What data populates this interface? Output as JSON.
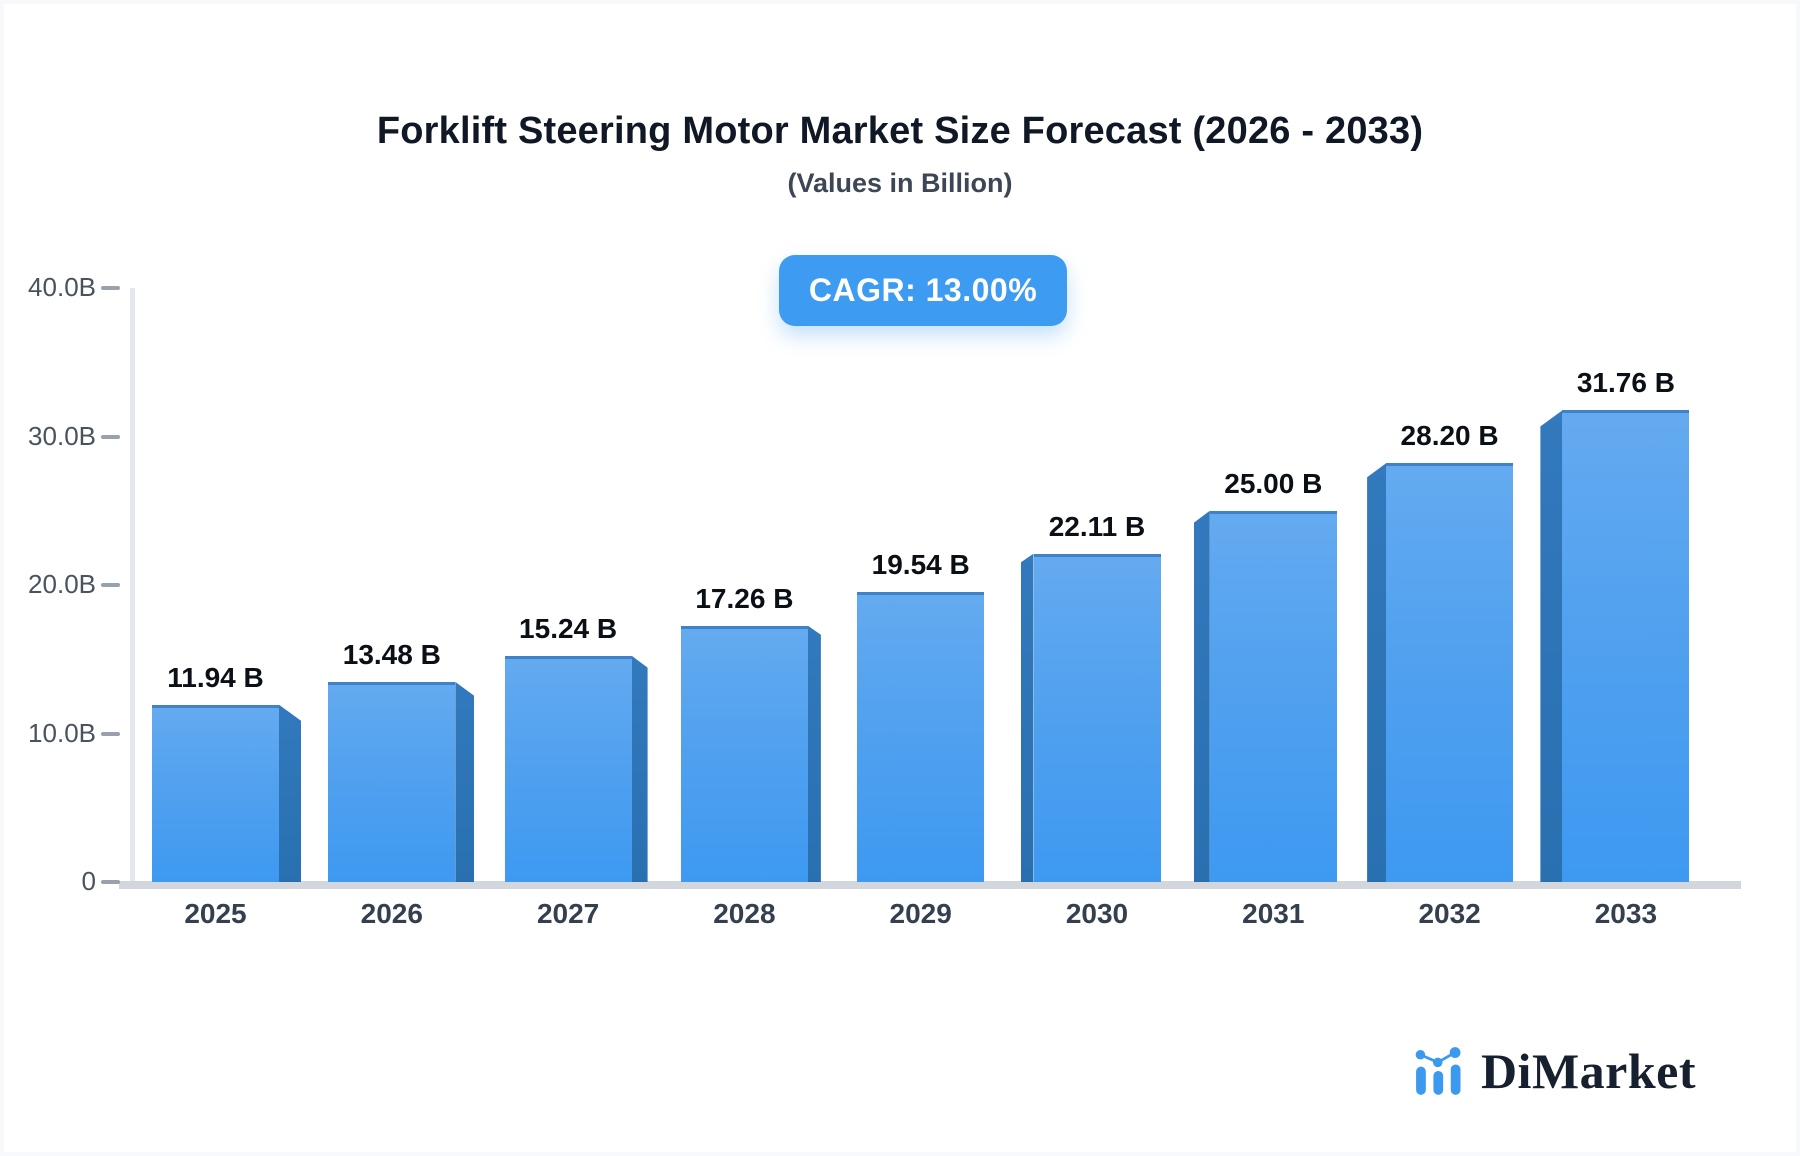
{
  "header": {
    "title": "Forklift Steering Motor Market Size Forecast (2026 - 2033)",
    "subtitle": "(Values in Billion)"
  },
  "badge": {
    "label": "CAGR: 13.00%",
    "color": "#3d9cf2"
  },
  "chart_data": {
    "type": "bar",
    "title": "Forklift Steering Motor Market Size Forecast (2026 - 2033)",
    "subtitle": "(Values in Billion)",
    "categories": [
      "2025",
      "2026",
      "2027",
      "2028",
      "2029",
      "2030",
      "2031",
      "2032",
      "2033"
    ],
    "values": [
      11.94,
      13.48,
      15.24,
      17.26,
      19.54,
      22.11,
      25.0,
      28.2,
      31.76
    ],
    "bar_labels": [
      "11.94 B",
      "13.48 B",
      "15.24 B",
      "17.26 B",
      "19.54 B",
      "22.11 B",
      "25.00 B",
      "28.20 B",
      "31.76 B"
    ],
    "xlabel": "",
    "ylabel": "",
    "ylim": [
      0,
      40
    ],
    "yticks": [
      {
        "label": "40.0B",
        "value": 40
      },
      {
        "label": "30.0B",
        "value": 30
      },
      {
        "label": "20.0B",
        "value": 20
      },
      {
        "label": "10.0B",
        "value": 10
      },
      {
        "label": "0",
        "value": 0
      }
    ],
    "grid": "off",
    "legend": "none",
    "bar_color_top": "#64aaf0",
    "bar_color_bottom": "#3e99f1",
    "bar_side_color": "#2d74b6"
  },
  "footer": {
    "brand": "DiMarket",
    "logo_icon": "mini-bar-line-chart-icon",
    "brand_color": "#16202e",
    "icon_color": "#3b9af0"
  }
}
